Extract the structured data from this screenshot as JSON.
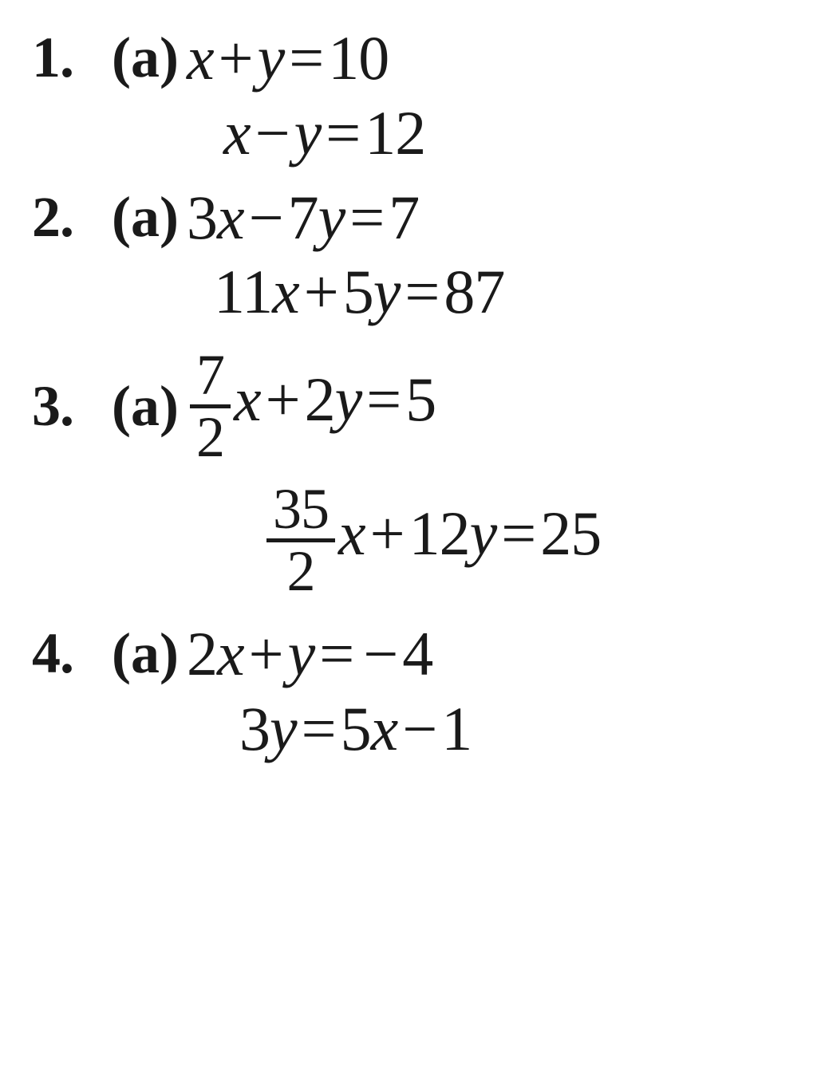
{
  "problems": [
    {
      "number": "1.",
      "part": "(a)",
      "eq1_html": "<span class='var'>x</span><span class='op'>+</span><span class='var'>y</span><span class='op'>=</span><span class='d'>10</span>",
      "eq2_html": "<span class='var'>x</span><span class='op'>−</span><span class='var'>y</span><span class='op'>=</span><span class='d'>12</span>",
      "indent2": "indent-1a"
    },
    {
      "number": "2.",
      "part": "(a)",
      "eq1_html": "<span class='d'>3</span><span class='var'>x</span><span class='op'>−</span><span class='d'>7</span><span class='var'>y</span><span class='op'>=</span><span class='d'>7</span>",
      "eq2_html": "<span class='d'>11</span><span class='var'>x</span><span class='op'>+</span><span class='d'>5</span><span class='var'>y</span><span class='op'>=</span><span class='d'>87</span>",
      "indent2": "indent-2a"
    },
    {
      "number": "3.",
      "part": "(a)",
      "eq1_html": "<span class='frac'><span class='top'>7</span><span class='bot'>2</span></span><span class='var'>x</span><span class='op'>+</span><span class='d'>2</span><span class='var'>y</span><span class='op'>=</span><span class='d'>5</span>",
      "eq2_html": "<span class='frac'><span class='top'>35</span><span class='bot'>2</span></span><span class='var'>x</span><span class='op'>+</span><span class='d'>12</span><span class='var'>y</span><span class='op'>=</span><span class='d'>25</span>",
      "indent2": "indent-3a",
      "tall": true
    },
    {
      "number": "4.",
      "part": "(a)",
      "eq1_html": "<span class='d'>2</span><span class='var'>x</span><span class='op'>+</span><span class='var'>y</span><span class='op'>=</span><span class='op'>−</span><span class='d'>4</span>",
      "eq2_html": "<span class='d'>3</span><span class='var'>y</span><span class='op'>=</span><span class='d'>5</span><span class='var'>x</span><span class='op'>−</span><span class='d'>1</span>",
      "indent2": "indent-4a"
    }
  ]
}
